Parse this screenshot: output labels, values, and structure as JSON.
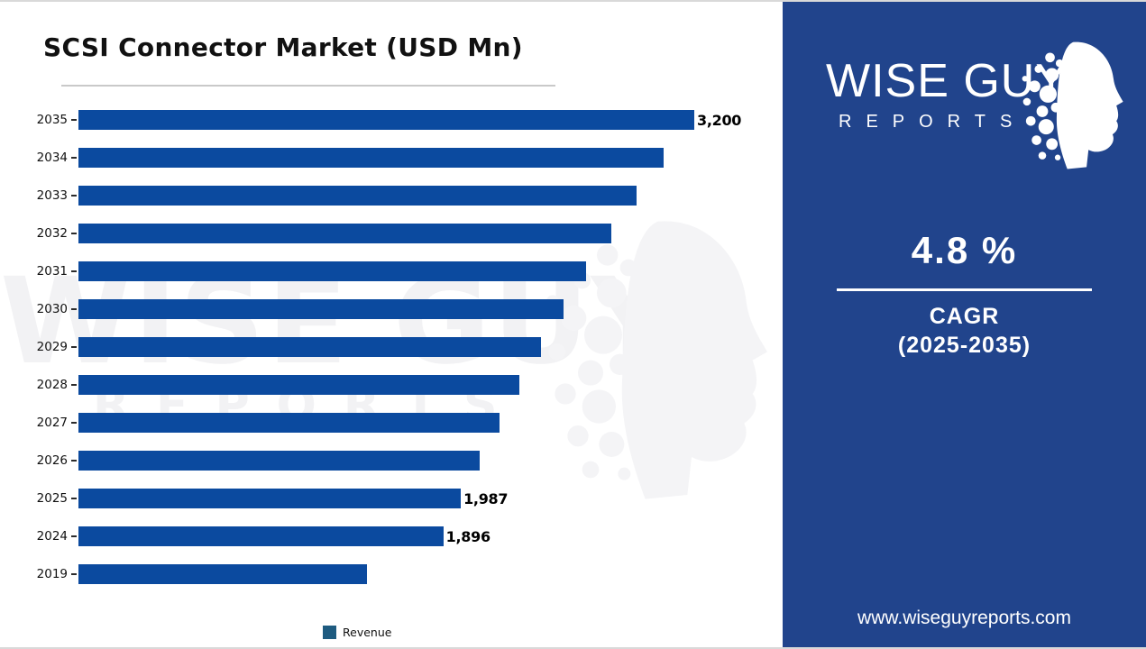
{
  "title": "SCSI Connector Market (USD Mn)",
  "chart_data": {
    "type": "bar",
    "orientation": "horizontal",
    "title": "SCSI Connector Market (USD Mn)",
    "categories": [
      "2035",
      "2034",
      "2033",
      "2032",
      "2031",
      "2030",
      "2029",
      "2028",
      "2027",
      "2026",
      "2025",
      "2024",
      "2019"
    ],
    "values": [
      3200,
      3040,
      2900,
      2770,
      2640,
      2520,
      2405,
      2290,
      2190,
      2085,
      1987,
      1896,
      1500
    ],
    "data_labels": {
      "2035": "3,200",
      "2025": "1,987",
      "2024": "1,896"
    },
    "xlim": [
      0,
      3200
    ],
    "grid": false,
    "bar_color": "#0b4a9f",
    "legend_position": "bottom-center",
    "legend": [
      {
        "label": "Revenue",
        "color": "#1e5b80"
      }
    ]
  },
  "watermark": {
    "line1": "WISE GUY",
    "line2": "REPORTS"
  },
  "sidebar": {
    "bg_color": "#21448c",
    "logo_line1": "WISE GUY",
    "logo_line2": "REPORTS",
    "cagr_value": "4.8 %",
    "cagr_label": "CAGR",
    "cagr_period": "(2025-2035)",
    "website": "www.wiseguyreports.com"
  }
}
